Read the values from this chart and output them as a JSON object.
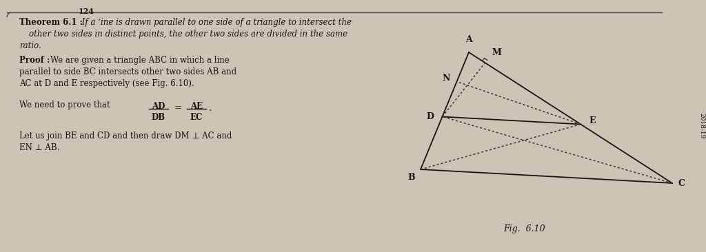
{
  "bg_color": "#ccc4b5",
  "text_color": "#1a1510",
  "page_num": "124",
  "theorem_label": "Theorem 6.1 :",
  "theorem_italic1": " If a ‘ine is drawn parallel to one side of a triangle to intersect the",
  "theorem_italic2": "other two sides in distinct points, the other two sides are divided in the same",
  "theorem_italic3": "ratio.",
  "proof_bold": "Proof :",
  "proof_text1": "  We are given a triangle ABC in which a line",
  "proof_text2": "parallel to side BC intersects other two sides AB and",
  "proof_text3": "AC at D and E respectively (see Fig. 6.10).",
  "prove_text": "We need to prove that ",
  "frac1_num": "AD",
  "frac1_den": "DB",
  "frac2_num": "AE",
  "frac2_den": "EC",
  "last_line1": "Let us join BE and CD and then draw DM ⊥ AC and",
  "last_line2": "EN ⊥ AB.",
  "fig_caption": "Fig.  6.10",
  "side_text": "2018-19",
  "solid_color": "#1a1510",
  "dotted_color": "#3a3530",
  "label_fs": 8,
  "text_fs": 8,
  "theorem_fs": 8,
  "side_fs": 6.5
}
